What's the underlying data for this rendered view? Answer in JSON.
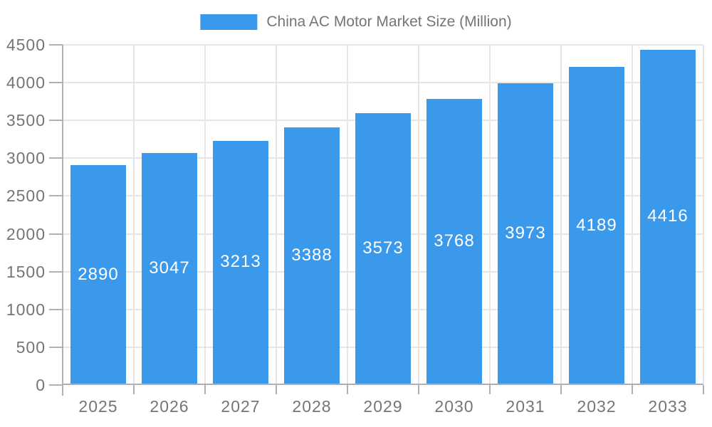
{
  "chart_data": {
    "type": "bar",
    "title": "China AC Motor Market Size (Million)",
    "categories": [
      "2025",
      "2026",
      "2027",
      "2028",
      "2029",
      "2030",
      "2031",
      "2032",
      "2033"
    ],
    "values": [
      2890,
      3047,
      3213,
      3388,
      3573,
      3768,
      3973,
      4189,
      4416
    ],
    "xlabel": "",
    "ylabel": "",
    "ylim": [
      0,
      4500
    ],
    "yticks": [
      0,
      500,
      1000,
      1500,
      2000,
      2500,
      3000,
      3500,
      4000,
      4500
    ],
    "grid": true,
    "legend_position": "top",
    "bar_label_position": "inside-middle",
    "colors": {
      "bar": "#3B99EC",
      "grid": "#E6E6E6",
      "axis": "#B0B0B0",
      "tick_label": "#757575",
      "bar_label": "#FFFFFF",
      "background": "#FFFFFF"
    }
  }
}
